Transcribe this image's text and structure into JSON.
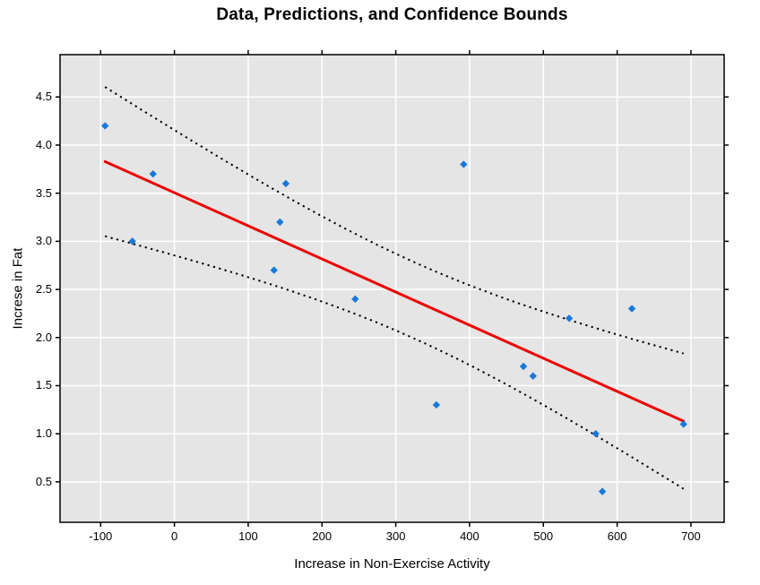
{
  "colors": {
    "page_background": "#ffffff",
    "panel_background": "#e5e5e5",
    "gridline": "#ffffff",
    "points": "#1a78d9",
    "regression_line": "#ee0000",
    "confidence_bounds": "#000000",
    "axis": "#000000",
    "text": "#000000"
  },
  "chart_data": {
    "type": "scatter",
    "title": "Data, Predictions, and Confidence Bounds",
    "xlabel": "Increase in Non-Exercise Activity",
    "ylabel": "Increse in Fat",
    "xlim": [
      -155,
      745
    ],
    "ylim": [
      0.08,
      4.94
    ],
    "x_ticks": [
      -100,
      0,
      100,
      200,
      300,
      400,
      500,
      600,
      700
    ],
    "x_tick_labels": [
      "-100",
      "0",
      "100",
      "200",
      "300",
      "400",
      "500",
      "600",
      "700"
    ],
    "y_ticks": [
      0.5,
      1.0,
      1.5,
      2.0,
      2.5,
      3.0,
      3.5,
      4.0,
      4.5
    ],
    "y_tick_labels": [
      "0.5",
      "1.0",
      "1.5",
      "2.0",
      "2.5",
      "3.0",
      "3.5",
      "4.0",
      "4.5"
    ],
    "grid": true,
    "legend": false,
    "series": [
      {
        "name": "observed-data",
        "type": "scatter",
        "marker": "diamond",
        "x": [
          -94,
          -57,
          -29,
          135,
          143,
          151,
          245,
          355,
          392,
          473,
          486,
          535,
          571,
          580,
          620,
          690
        ],
        "y": [
          4.2,
          3.0,
          3.7,
          2.7,
          3.2,
          3.6,
          2.4,
          1.3,
          3.8,
          1.7,
          1.6,
          2.2,
          1.0,
          0.4,
          2.3,
          1.1
        ]
      },
      {
        "name": "regression-prediction-line",
        "type": "line",
        "style": "solid",
        "intercept": 3.505,
        "slope": -0.003441,
        "x_range": [
          -94,
          690
        ]
      },
      {
        "name": "confidence-bounds",
        "type": "band",
        "style": "dotted",
        "half_width_formula": "t_s * sqrt(1/n + (x - x_mean)^2 / sxx)",
        "t_s": 1.587,
        "n": 16,
        "x_mean": 324.75,
        "sxx": 995805,
        "x_range": [
          -94,
          690
        ],
        "upper_at_xmin": 4.6,
        "lower_at_xmin": 3.05,
        "upper_at_xmax": 1.84,
        "lower_at_xmax": 0.43
      }
    ]
  }
}
